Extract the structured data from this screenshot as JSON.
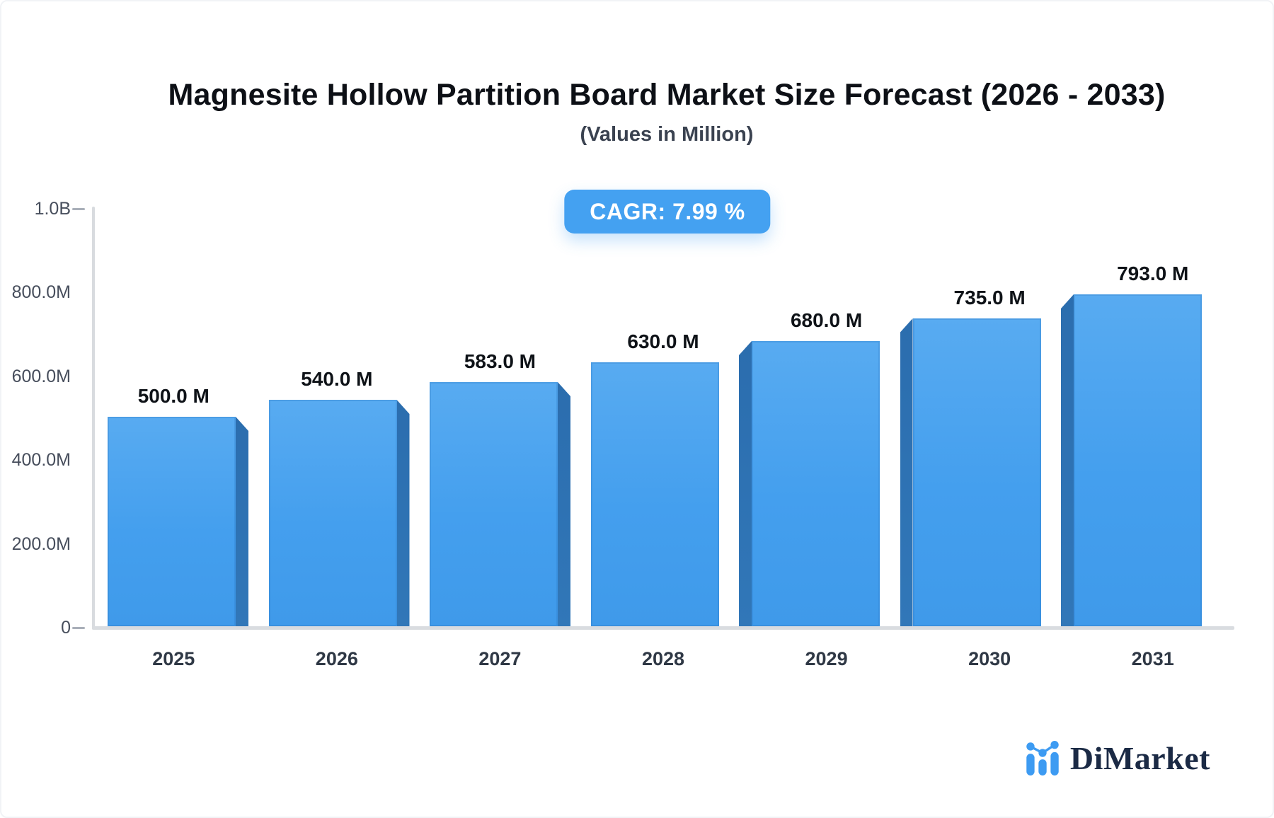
{
  "header": {
    "title": "Magnesite Hollow Partition Board Market Size Forecast (2026 - 2033)",
    "subtitle": "(Values in Million)"
  },
  "cagr_badge": {
    "label": "CAGR: 7.99 %"
  },
  "chart_data": {
    "type": "bar",
    "title": "Magnesite Hollow Partition Board Market Size Forecast (2026 - 2033)",
    "subtitle": "(Values in Million)",
    "unit": "Million",
    "cagr": "7.99 %",
    "categories": [
      "2025",
      "2026",
      "2027",
      "2028",
      "2029",
      "2030",
      "2031"
    ],
    "values": [
      500,
      540,
      583,
      630,
      680,
      735,
      793
    ],
    "value_labels": [
      "500.0 M",
      "540.0 M",
      "583.0 M",
      "630.0 M",
      "680.0 M",
      "735.0 M",
      "793.0 M"
    ],
    "ylim": [
      0,
      1000
    ],
    "y_ticks": [
      {
        "label": "1.0B",
        "value": 1000,
        "dash": true
      },
      {
        "label": "800.0M",
        "value": 800,
        "dash": false
      },
      {
        "label": "600.0M",
        "value": 600,
        "dash": false
      },
      {
        "label": "400.0M",
        "value": 400,
        "dash": false
      },
      {
        "label": "200.0M",
        "value": 200,
        "dash": false
      },
      {
        "label": "0",
        "value": 0,
        "dash": true
      }
    ],
    "grid": false,
    "legend_position": "none",
    "colors": {
      "bar_face_top": "#58abf1",
      "bar_face_bottom": "#3f9aea",
      "bar_side": "#2e73b5",
      "badge": "#44a1f1",
      "axis": "#d8dbdf",
      "title_text": "#0d1016",
      "label_text": "#0e1217"
    }
  },
  "logo": {
    "text": "DiMarket",
    "icon": "dimarket-bars-icon"
  }
}
